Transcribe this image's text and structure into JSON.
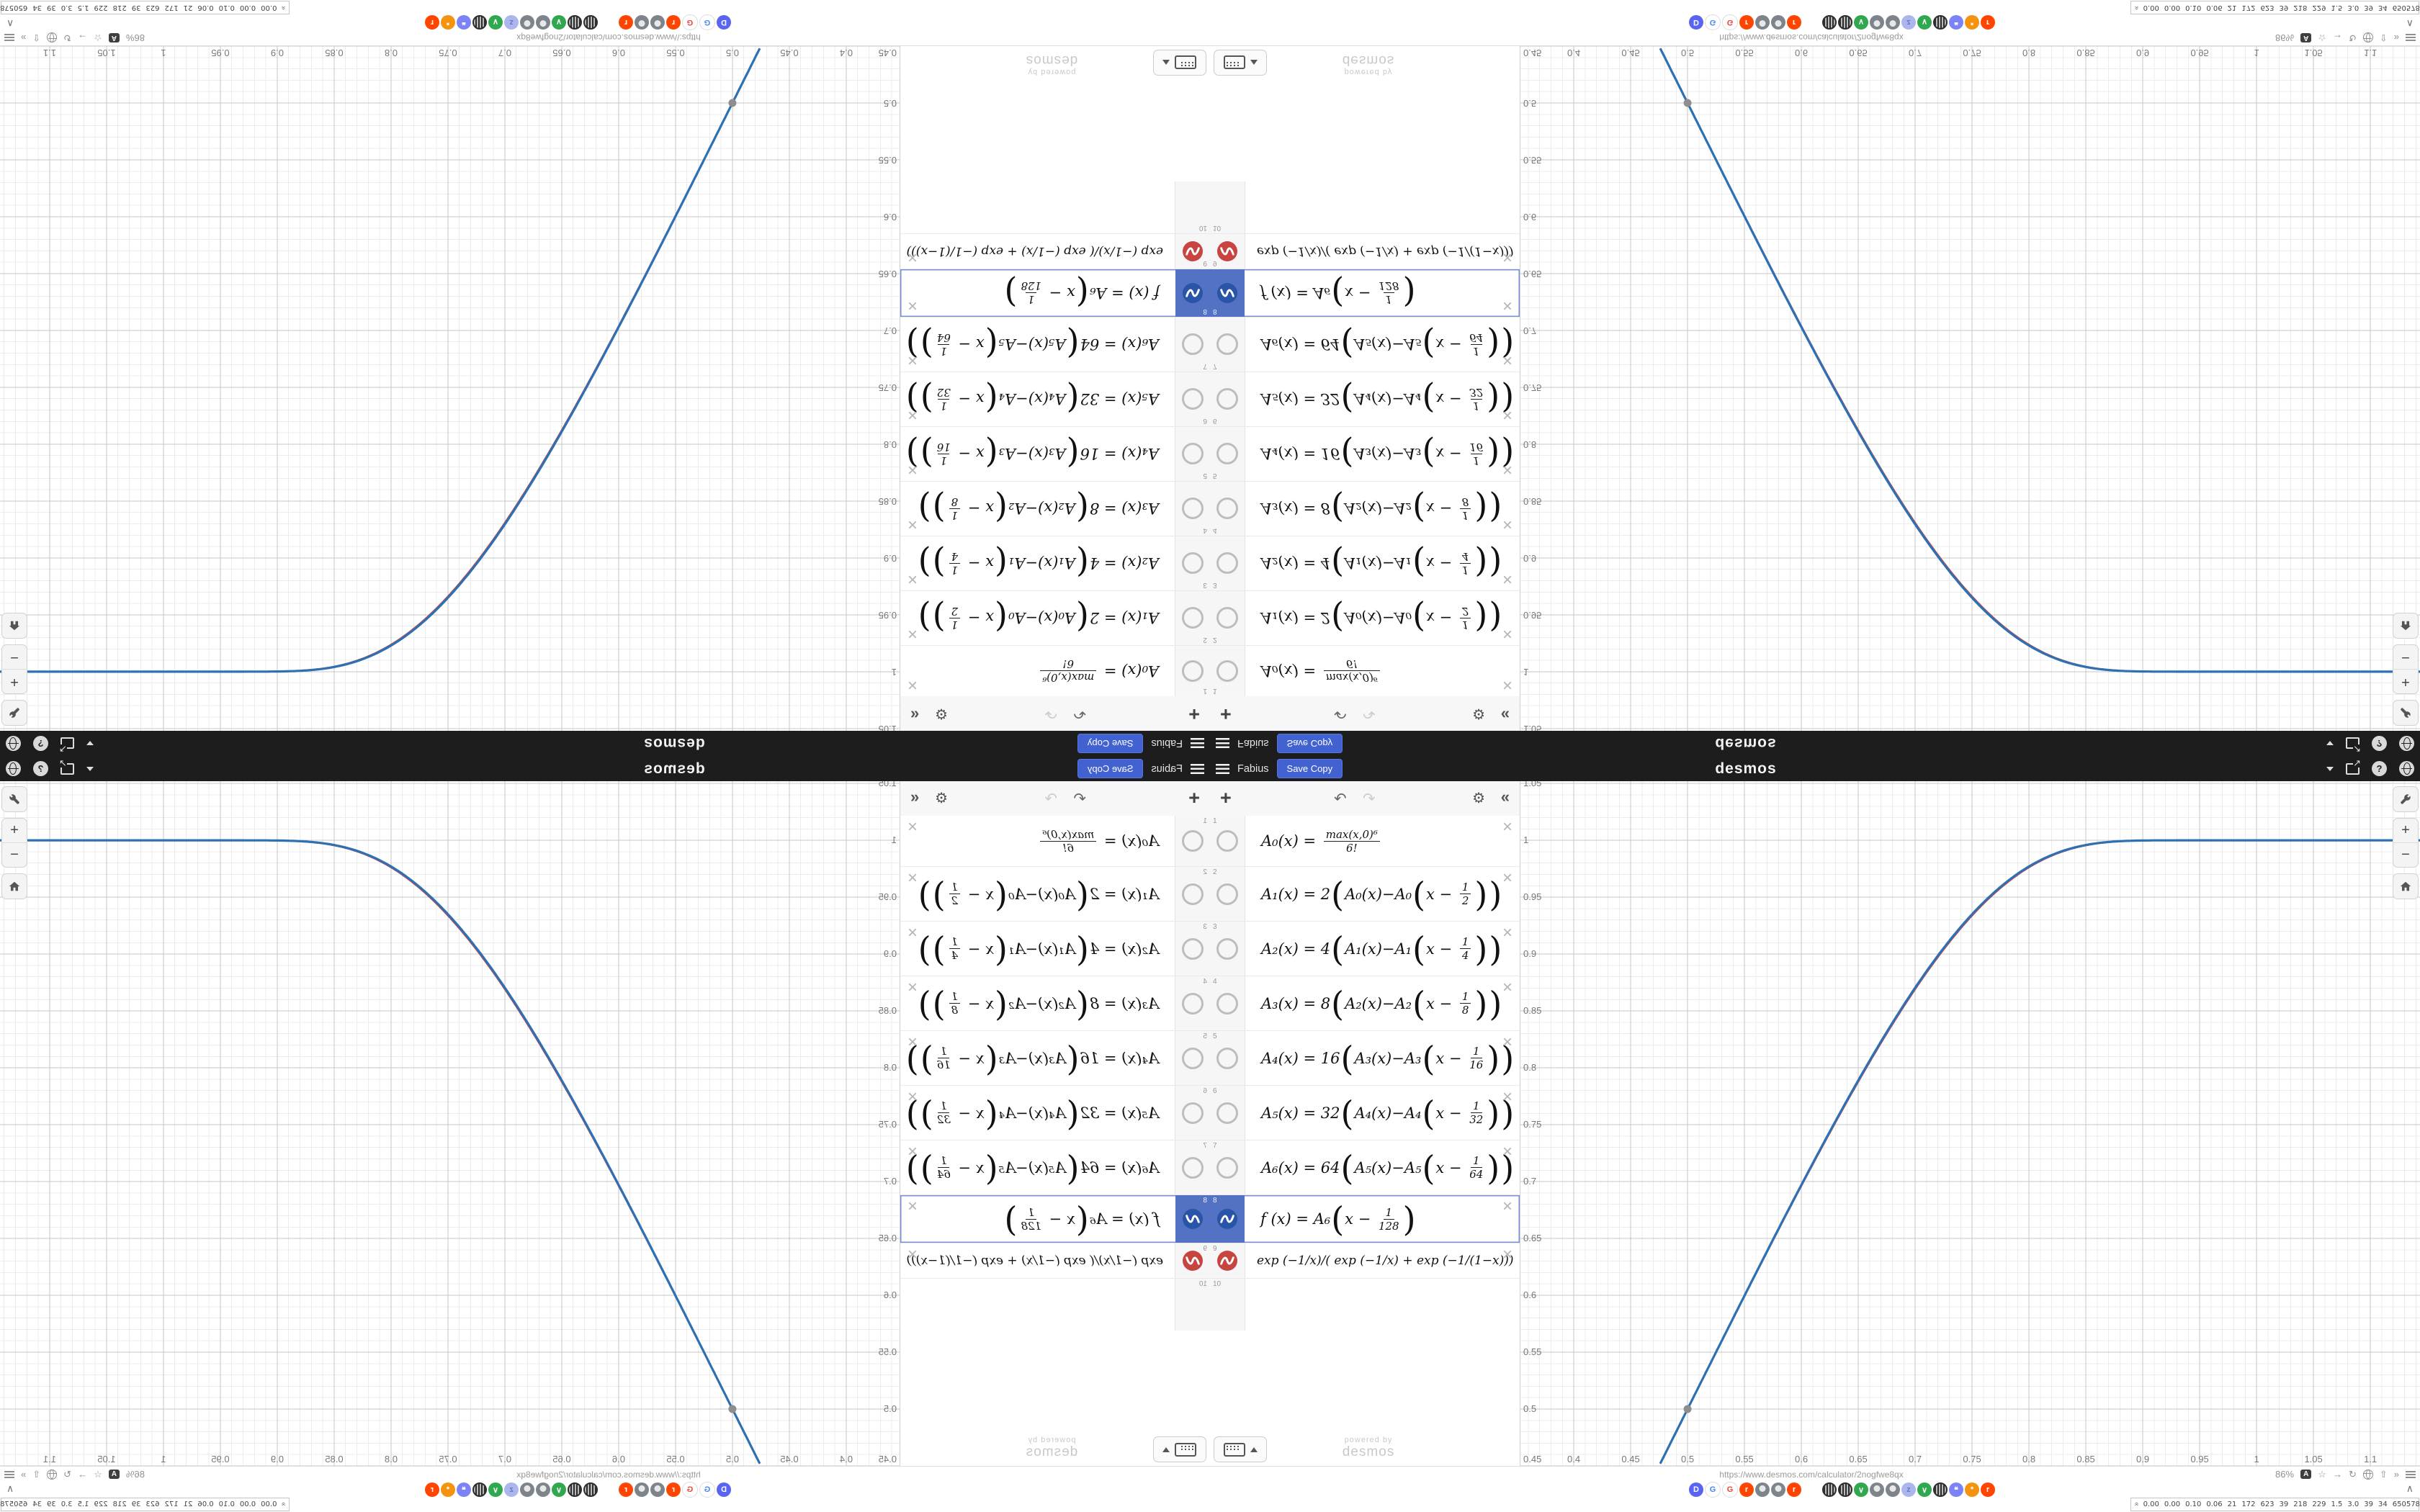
{
  "header": {
    "user_name": "Fabius",
    "save_copy_label": "Save Copy",
    "brand": "desmos",
    "right_icons": [
      "caret-down-icon",
      "share-icon",
      "help-icon",
      "globe-icon"
    ]
  },
  "expression_panel": {
    "toolbar": {
      "add": "+",
      "undo": "↶",
      "redo": "↷",
      "gear": "⚙",
      "collapse": "«"
    },
    "delete_glyph": "×",
    "rows": [
      {
        "n": "1",
        "icon": "circle-hidden",
        "latex": "A_0(x)=max(x,0)^6/6!",
        "tokens": [
          {
            "t": "A₀(x) = "
          },
          {
            "f": [
              "max(x,0)⁶",
              "6!"
            ]
          }
        ]
      },
      {
        "n": "2",
        "icon": "circle-hidden",
        "latex": "A_1(x)=2(A_0(x)-A_0(x-1/2))",
        "tokens": [
          {
            "t": "A₁(x) = 2"
          },
          {
            "p": "("
          },
          {
            "t": "A₀(x)−A₀"
          },
          {
            "p": "("
          },
          {
            "t": "x − "
          },
          {
            "f": [
              "1",
              "2"
            ]
          },
          {
            "p": ")"
          },
          {
            "p": ")"
          }
        ]
      },
      {
        "n": "3",
        "icon": "circle-hidden",
        "latex": "A_2(x)=4(A_1(x)-A_1(x-1/4))",
        "tokens": [
          {
            "t": "A₂(x) = 4"
          },
          {
            "p": "("
          },
          {
            "t": "A₁(x)−A₁"
          },
          {
            "p": "("
          },
          {
            "t": "x − "
          },
          {
            "f": [
              "1",
              "4"
            ]
          },
          {
            "p": ")"
          },
          {
            "p": ")"
          }
        ]
      },
      {
        "n": "4",
        "icon": "circle-hidden",
        "latex": "A_3(x)=8(A_2(x)-A_2(x-1/8))",
        "tokens": [
          {
            "t": "A₃(x) = 8"
          },
          {
            "p": "("
          },
          {
            "t": "A₂(x)−A₂"
          },
          {
            "p": "("
          },
          {
            "t": "x − "
          },
          {
            "f": [
              "1",
              "8"
            ]
          },
          {
            "p": ")"
          },
          {
            "p": ")"
          }
        ]
      },
      {
        "n": "5",
        "icon": "circle-hidden",
        "latex": "A_4(x)=16(A_3(x)-A_3(x-1/16))",
        "tokens": [
          {
            "t": "A₄(x) = 16"
          },
          {
            "p": "("
          },
          {
            "t": "A₃(x)−A₃"
          },
          {
            "p": "("
          },
          {
            "t": "x − "
          },
          {
            "f": [
              "1",
              "16"
            ]
          },
          {
            "p": ")"
          },
          {
            "p": ")"
          }
        ]
      },
      {
        "n": "6",
        "icon": "circle-hidden",
        "latex": "A_5(x)=32(A_4(x)-A_4(x-1/32))",
        "tokens": [
          {
            "t": "A₅(x) = 32"
          },
          {
            "p": "("
          },
          {
            "t": "A₄(x)−A₄"
          },
          {
            "p": "("
          },
          {
            "t": "x − "
          },
          {
            "f": [
              "1",
              "32"
            ]
          },
          {
            "p": ")"
          },
          {
            "p": ")"
          }
        ]
      },
      {
        "n": "7",
        "icon": "circle-hidden",
        "latex": "A_6(x)=64(A_5(x)-A_5(x-1/64))",
        "tokens": [
          {
            "t": "A₆(x) = 64"
          },
          {
            "p": "("
          },
          {
            "t": "A₅(x)−A₅"
          },
          {
            "p": "("
          },
          {
            "t": "x − "
          },
          {
            "f": [
              "1",
              "64"
            ]
          },
          {
            "p": ")"
          },
          {
            "p": ")"
          }
        ]
      },
      {
        "n": "8",
        "icon": "wave-blue",
        "selected": true,
        "latex": "f(x)=A_6(x-1/128)",
        "tokens": [
          {
            "t": "f (x) = A₆"
          },
          {
            "p": "("
          },
          {
            "t": "x − "
          },
          {
            "f": [
              "1",
              "128"
            ]
          },
          {
            "p": ")"
          }
        ]
      },
      {
        "n": "9",
        "icon": "wave-red",
        "small": true,
        "latex": "exp(-1/x)/(exp(-1/x)+exp(-1/(1-x)))",
        "tokens": [
          {
            "t": "exp (−1/x)/( exp (−1/x) + exp (−1/(1−x)))"
          }
        ]
      },
      {
        "n": "10",
        "icon": "none",
        "latex": "",
        "tokens": []
      }
    ],
    "keyboard_button": "show-keyboard",
    "watermark_line1": "powered by",
    "watermark_line2": "desmos"
  },
  "graph_controls": {
    "wrench": "wrench",
    "zoom_in": "+",
    "zoom_out": "−",
    "home": "home"
  },
  "chart_data": {
    "type": "line",
    "title": "",
    "xlabel": "",
    "ylabel": "",
    "x_range": [
      0.3525,
      1.1436
    ],
    "y_range": [
      0.45,
      1.052
    ],
    "x_tick_step": 0.05,
    "y_tick_step": 0.05,
    "minor_per_major": 5,
    "x_ticks": [
      "0.4",
      "0.45",
      "0.5",
      "0.55",
      "0.6",
      "0.65",
      "0.7",
      "0.75",
      "0.8",
      "0.85",
      "0.9",
      "0.95",
      "1",
      "1.05",
      "1.1"
    ],
    "y_ticks": [
      "1.05",
      "1",
      "0.95",
      "0.9",
      "0.85",
      "0.8",
      "0.75",
      "0.7",
      "0.65",
      "0.6",
      "0.55",
      "0.5",
      "0.45"
    ],
    "grid": true,
    "legend": "none",
    "series": [
      {
        "name": "f(x) = A6(x − 1/128)",
        "color": "#2d70b3",
        "description": "smooth sigmoid rising from (0,0) to (1,1), flat at y=1 for x>1; passes (0.5, 0.5)"
      },
      {
        "name": "exp(−1/x)/(exp(−1/x)+exp(−1/(1−x)))",
        "color": "#c74440",
        "description": "bump-function partition sigmoid, nearly identical to f, slightly shallower near top"
      }
    ],
    "marked_point": {
      "x": 0.5,
      "y": 0.5,
      "color": "#8e8e8e"
    }
  },
  "browser": {
    "url": "https://www.desmos.com/calculator/2nogfwe8qx",
    "zoom_level": "86%",
    "toolbar_icons": [
      {
        "name": "zoom-level-indicator",
        "kind": "text",
        "label": "86%"
      },
      {
        "name": "translate-icon",
        "kind": "badge",
        "label": "A"
      },
      {
        "name": "bookmark-star-icon",
        "kind": "text",
        "label": "☆"
      },
      {
        "name": "forward-icon",
        "kind": "text",
        "label": "→"
      },
      {
        "name": "reload-icon",
        "kind": "text",
        "label": "↻"
      },
      {
        "name": "globe-icon",
        "kind": "globe",
        "label": ""
      },
      {
        "name": "share-icon",
        "kind": "text",
        "label": "⇧"
      },
      {
        "name": "more-chevrons-icon",
        "kind": "text",
        "label": "»"
      },
      {
        "name": "menu-icon",
        "kind": "menu",
        "label": ""
      }
    ],
    "bookmarks_caret": "∧",
    "favicons": [
      {
        "name": "discord-favicon",
        "bg": "#5865f2",
        "fg": "#ffffff",
        "glyph": "D"
      },
      {
        "name": "google-favicon",
        "bg": "#ffffff",
        "fg": "#4285f4",
        "glyph": "G",
        "border": "#dddddd"
      },
      {
        "name": "google-favicon",
        "bg": "#ffffff",
        "fg": "#ea4335",
        "glyph": "G",
        "border": "#dddddd"
      },
      {
        "name": "reddit-favicon",
        "bg": "#ff4500",
        "fg": "#ffffff",
        "glyph": "r"
      },
      {
        "name": "raccoon-favicon",
        "bg": "raccoon",
        "fg": "#3a3a3a",
        "glyph": ""
      },
      {
        "name": "raccoon-favicon",
        "bg": "raccoon",
        "fg": "#3a3a3a",
        "glyph": ""
      },
      {
        "name": "reddit-favicon",
        "bg": "#ff4500",
        "fg": "#ffffff",
        "glyph": "r"
      },
      {
        "name": "trash-favicon",
        "bg": "striped",
        "fg": "#cccccc",
        "glyph": "",
        "gap": true
      },
      {
        "name": "trash-favicon",
        "bg": "striped",
        "fg": "#cccccc",
        "glyph": ""
      },
      {
        "name": "green-wave-favicon",
        "bg": "#2fa84f",
        "fg": "#ffffff",
        "glyph": "∨"
      },
      {
        "name": "raccoon-favicon",
        "bg": "raccoon",
        "fg": "#3a3a3a",
        "glyph": ""
      },
      {
        "name": "raccoon-favicon",
        "bg": "raccoon",
        "fg": "#3a3a3a",
        "glyph": ""
      },
      {
        "name": "sleepy-face-favicon",
        "bg": "#aab6ec",
        "fg": "#6e79c9",
        "glyph": "z"
      },
      {
        "name": "green-wave-favicon",
        "bg": "#2fa84f",
        "fg": "#ffffff",
        "glyph": "∨"
      },
      {
        "name": "trash-favicon",
        "bg": "striped",
        "fg": "#cccccc",
        "glyph": ""
      },
      {
        "name": "chat-bubble-favicon",
        "bg": "#7b83f7",
        "fg": "#ffffff",
        "glyph": "❝"
      },
      {
        "name": "sun-badge-favicon",
        "bg": "#f5920f",
        "fg": "#ffffff",
        "glyph": "*"
      },
      {
        "name": "reddit-favicon",
        "bg": "#ff4500",
        "fg": "#ffffff",
        "glyph": "r"
      }
    ]
  },
  "monitor": {
    "values": [
      "0.00",
      "0.00",
      "0.10",
      "0.06",
      "21",
      "172",
      "623",
      "39",
      "218",
      "229",
      "1.5",
      "3.0",
      "39",
      "34",
      "65057819"
    ],
    "spark_colors": {
      "yellow": "#e0cf3a",
      "green": "#4caf50",
      "purple": "#6a1b9a",
      "olive": "#8a8d2a",
      "brown": "#7a4a21",
      "red": "#c62828"
    }
  }
}
